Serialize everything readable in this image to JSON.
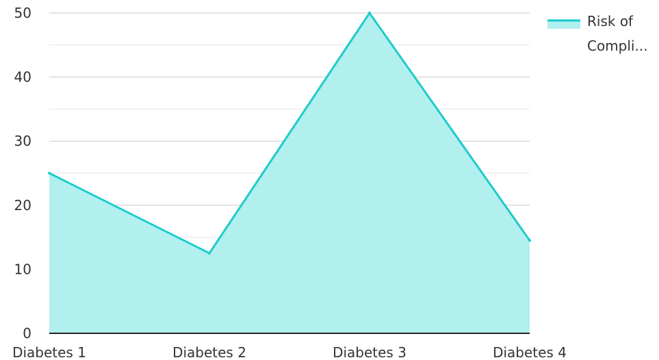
{
  "chart_data": {
    "type": "area",
    "categories": [
      "Diabetes 1",
      "Diabetes 2",
      "Diabetes 3",
      "Diabetes 4"
    ],
    "series": [
      {
        "name": "Risk of Compli...",
        "values": [
          25,
          12.5,
          50,
          14.5
        ],
        "color": "#1ecbcb",
        "fill": "#b2efef"
      }
    ],
    "ylim": [
      0,
      50
    ],
    "y_ticks": [
      "0",
      "10",
      "20",
      "30",
      "40",
      "50"
    ],
    "grid": true,
    "legend": {
      "position": "top-right",
      "lines": [
        "Risk of",
        "Compli..."
      ]
    }
  }
}
